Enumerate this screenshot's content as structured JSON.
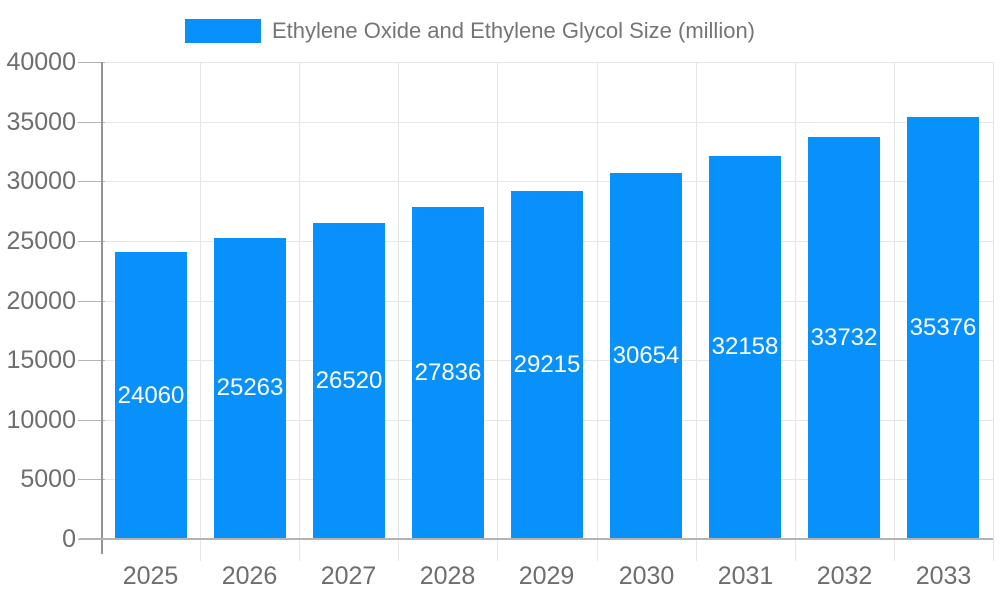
{
  "chart_data": {
    "type": "bar",
    "title": "Ethylene Oxide and Ethylene Glycol Size (million)",
    "categories": [
      "2025",
      "2026",
      "2027",
      "2028",
      "2029",
      "2030",
      "2031",
      "2032",
      "2033"
    ],
    "values": [
      24060,
      25263,
      26520,
      27836,
      29215,
      30654,
      32158,
      33732,
      35376
    ],
    "bar_labels": [
      "24060",
      "25263",
      "26520",
      "27836",
      "29215",
      "30654",
      "32158",
      "33732",
      "35376"
    ],
    "xlabel": "",
    "ylabel": "",
    "ylim": [
      0,
      40000
    ],
    "yticks": [
      0,
      5000,
      10000,
      15000,
      20000,
      25000,
      30000,
      35000,
      40000
    ],
    "ytick_labels": [
      "0",
      "5000",
      "10000",
      "15000",
      "20000",
      "25000",
      "30000",
      "35000",
      "40000"
    ],
    "grid": true,
    "legend_position": "top",
    "legend_entries": [
      "Ethylene Oxide and Ethylene Glycol Size (million)"
    ]
  },
  "colors": {
    "bar": "#0890fb",
    "bar_value_text": "#ffffff",
    "grid_line": "#e6e6e6",
    "y_axis_line": "#949494",
    "x_axis_line": "#b3b3b3",
    "tick_mark": "#b3b3b3",
    "axis_text": "#6e6e6e",
    "title_text": "#757575",
    "background": "#ffffff"
  }
}
